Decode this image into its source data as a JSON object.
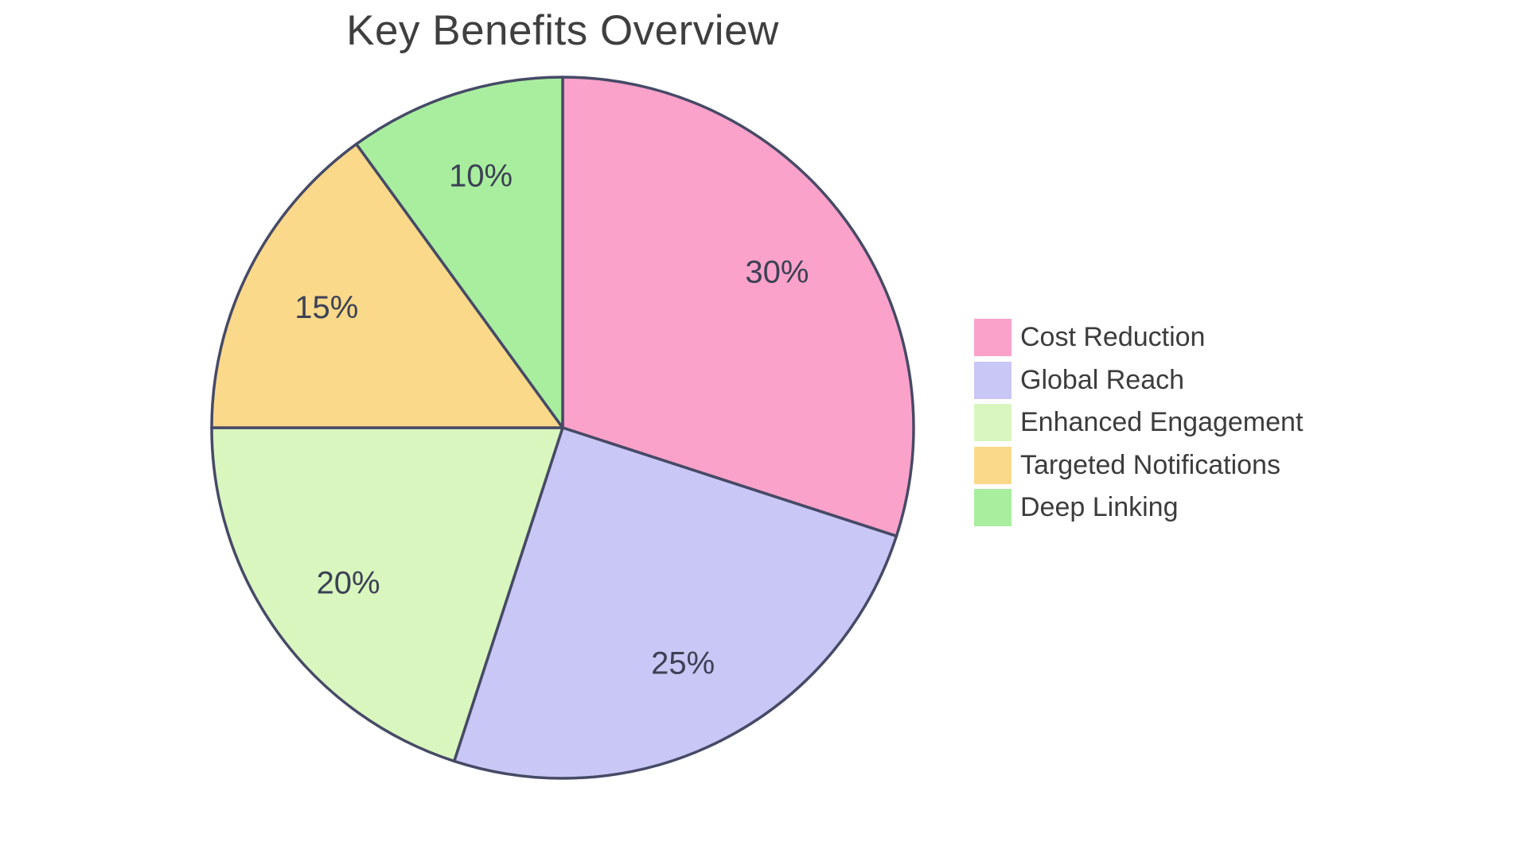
{
  "page": {
    "background_color": "#ffffff"
  },
  "chart_data": {
    "type": "pie",
    "title": "Key Benefits Overview",
    "start_angle": "12 o'clock",
    "direction": "clockwise",
    "legend_position": "right",
    "label_format": "percent inside slices",
    "stroke_color": "#464a66",
    "stroke_width": 3.5,
    "title_color": "#3f3f3f",
    "percent_label_color": "#3c4154",
    "legend_text_color": "#3c3c3c",
    "segments": [
      {
        "label": "Cost Reduction",
        "value": 30,
        "pct_label": "30%",
        "color": "#fba2cb"
      },
      {
        "label": "Global Reach",
        "value": 25,
        "pct_label": "25%",
        "color": "#c9c7f5"
      },
      {
        "label": "Enhanced Engagement",
        "value": 20,
        "pct_label": "20%",
        "color": "#d9f6bf"
      },
      {
        "label": "Targeted Notifications",
        "value": 15,
        "pct_label": "15%",
        "color": "#fbd98a"
      },
      {
        "label": "Deep Linking",
        "value": 10,
        "pct_label": "10%",
        "color": "#a9ee9f"
      }
    ]
  }
}
